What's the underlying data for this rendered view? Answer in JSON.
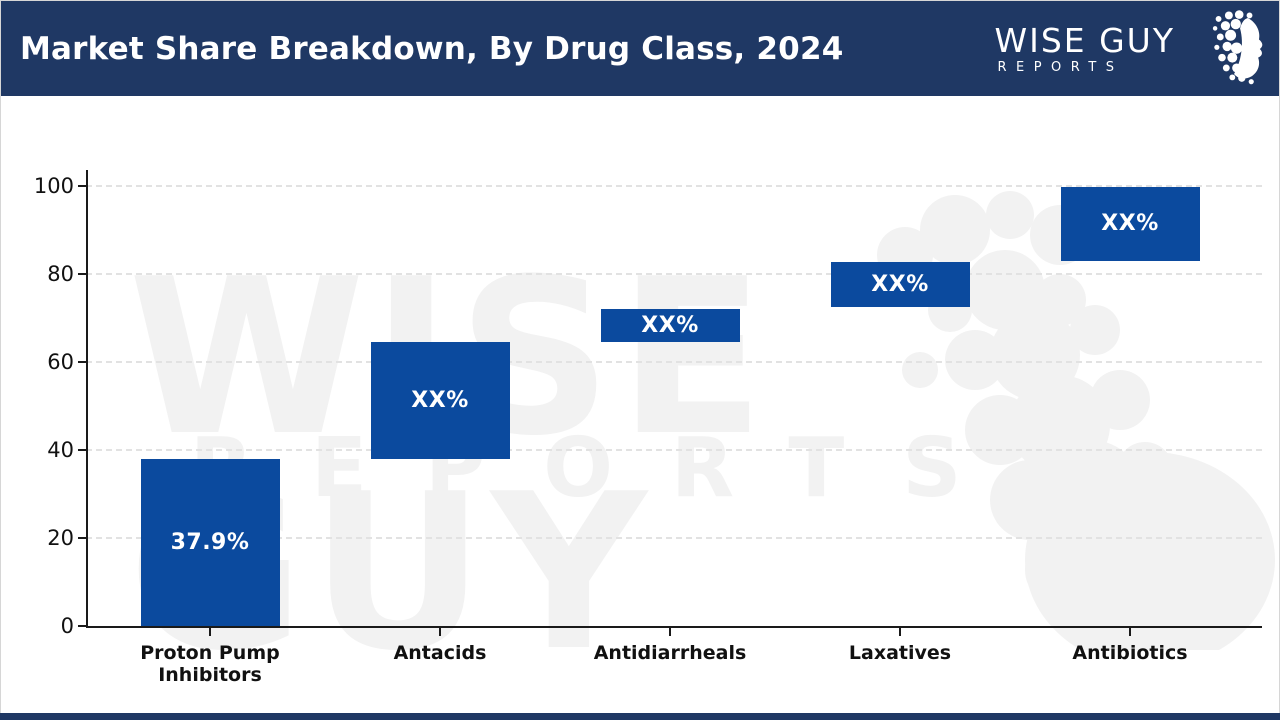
{
  "header": {
    "title": "Market Share Breakdown, By Drug Class, 2024",
    "logo": {
      "line1": "WISE GUY",
      "line2": "REPORTS"
    }
  },
  "watermark": {
    "line1": "WISE GUY",
    "line2": "REPORTS"
  },
  "colors": {
    "header_bg": "#1f3864",
    "footer_bg": "#1f3864",
    "bar": "#0b4a9e",
    "bar_label": "#ffffff",
    "axis": "#1a1a1a",
    "grid": "#e2e2e2",
    "watermark": "#f2f2f2"
  },
  "chart_data": {
    "type": "bar",
    "subtype": "waterfall",
    "title": "Market Share Breakdown, By Drug Class, 2024",
    "xlabel": "",
    "ylabel": "",
    "ylim": [
      0,
      105
    ],
    "yticks": [
      0,
      20,
      40,
      60,
      80,
      100
    ],
    "grid": "horizontal-dashed",
    "legend": "none",
    "categories": [
      "Proton Pump Inhibitors",
      "Antacids",
      "Antidiarrheals",
      "Laxatives",
      "Antibiotics"
    ],
    "segments": [
      {
        "category": "Proton Pump Inhibitors",
        "start": 0,
        "end": 37.9,
        "label": "37.9%"
      },
      {
        "category": "Antacids",
        "start": 37.9,
        "end": 64.5,
        "label": "XX%"
      },
      {
        "category": "Antidiarrheals",
        "start": 64.5,
        "end": 72.1,
        "label": "XX%"
      },
      {
        "category": "Laxatives",
        "start": 72.5,
        "end": 82.8,
        "label": "XX%"
      },
      {
        "category": "Antibiotics",
        "start": 83.0,
        "end": 99.8,
        "label": "XX%"
      }
    ]
  }
}
